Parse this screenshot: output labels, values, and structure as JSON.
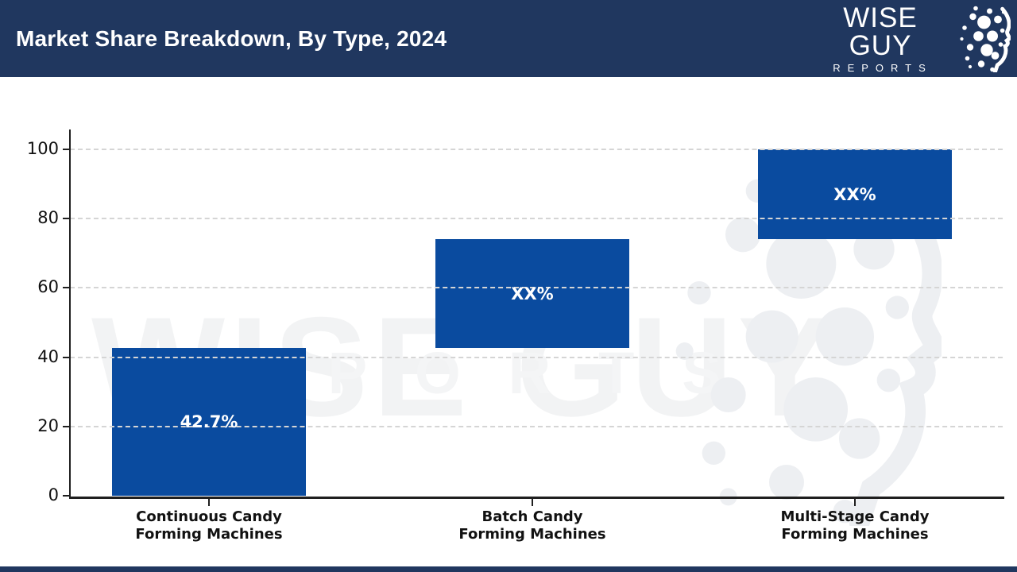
{
  "header": {
    "title": "Market Share Breakdown, By Type, 2024",
    "background": "#20375F"
  },
  "logo": {
    "line1": "WISE GUY",
    "line2": "REPORTS"
  },
  "watermark": {
    "line1": "WISE GUY",
    "line2": "REPORTS"
  },
  "chart_data": {
    "type": "bar",
    "subtype": "waterfall",
    "title": "Market Share Breakdown, By Type, 2024",
    "categories": [
      [
        "Continuous Candy",
        "Forming Machines"
      ],
      [
        "Batch Candy",
        "Forming Machines"
      ],
      [
        "Multi-Stage Candy",
        "Forming Machines"
      ]
    ],
    "segments": [
      {
        "start": 0,
        "end": 42.7,
        "label": "42.7%"
      },
      {
        "start": 42.7,
        "end": 74,
        "label": "XX%"
      },
      {
        "start": 74,
        "end": 100,
        "label": "XX%"
      }
    ],
    "ylim": [
      0,
      100
    ],
    "yticks": [
      0,
      20,
      40,
      60,
      80,
      100
    ],
    "grid": "horizontal-dashed",
    "legend": "none",
    "bar_color": "#0A4B9F",
    "bar_label_color": "#ffffff",
    "gridline_color": "#D5D5D5",
    "axis_color": "#1F1F1F"
  },
  "footer": {
    "background": "#20375F"
  }
}
